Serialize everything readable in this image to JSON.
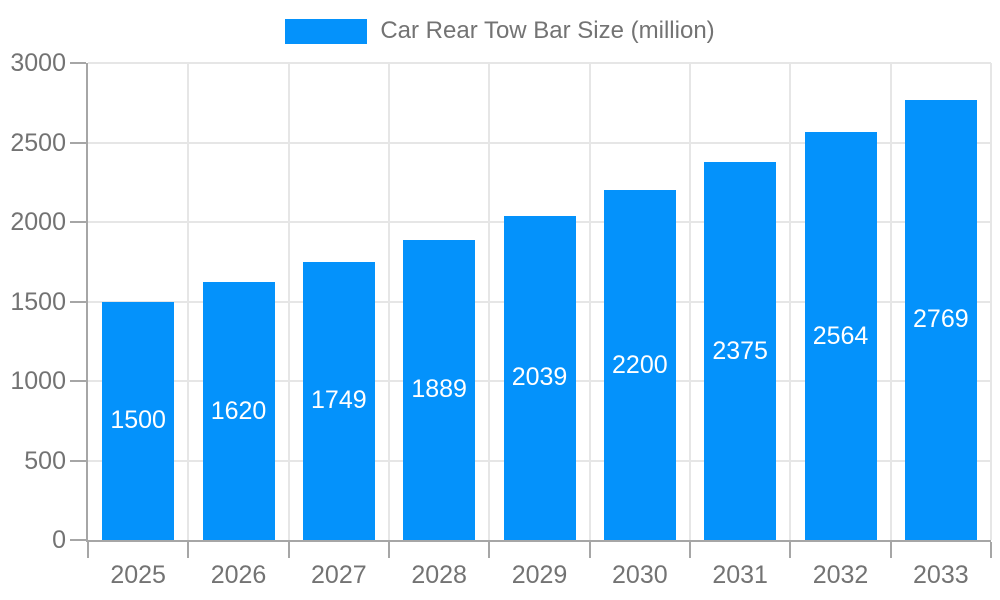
{
  "legend": {
    "label": "Car Rear Tow Bar Size (million)"
  },
  "chart_data": {
    "type": "bar",
    "title": "Car Rear Tow Bar Size (million)",
    "categories": [
      "2025",
      "2026",
      "2027",
      "2028",
      "2029",
      "2030",
      "2031",
      "2032",
      "2033"
    ],
    "values": [
      1500,
      1620,
      1749,
      1889,
      2039,
      2200,
      2375,
      2564,
      2769
    ],
    "xlabel": "",
    "ylabel": "",
    "ylim": [
      0,
      3000
    ],
    "yticks": [
      0,
      500,
      1000,
      1500,
      2000,
      2500,
      3000
    ],
    "grid": true,
    "legend_position": "top",
    "value_labels": "centered-inside-bars",
    "colors": {
      "bar": "#0492fb",
      "value_label": "#ffffff",
      "axis_text": "#737373",
      "gridline": "#e6e6e6",
      "axis_line": "#a6a6a6"
    }
  }
}
